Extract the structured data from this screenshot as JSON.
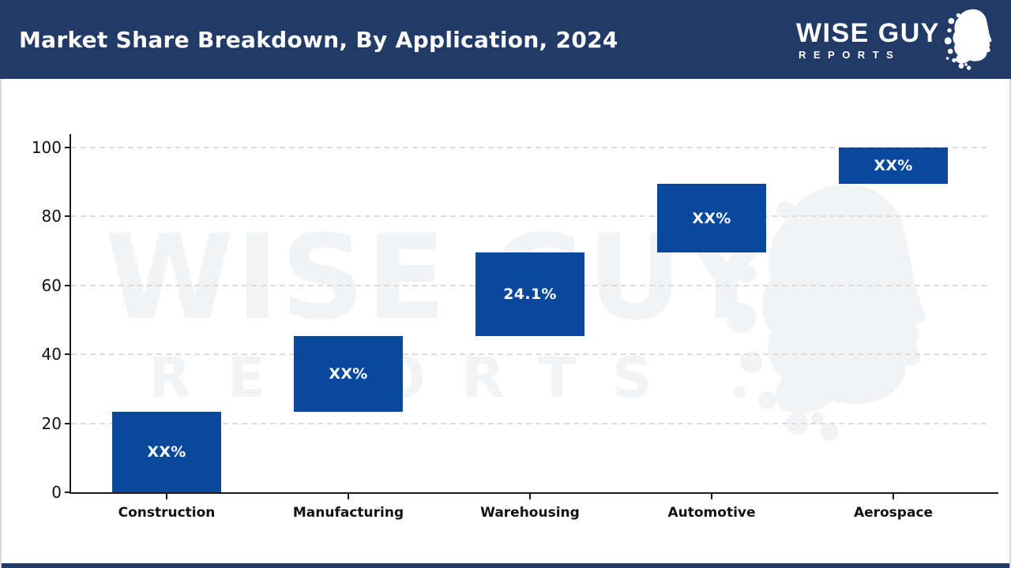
{
  "header": {
    "title": "Market Share Breakdown, By Application, 2024",
    "logo": {
      "line1": "WISE GUY",
      "line2": "REPORTS"
    }
  },
  "watermark": {
    "line1": "WISE GUY",
    "line2": "REPORTS"
  },
  "colors": {
    "navy": "#213a68",
    "bar_blue": "#0a489c",
    "grid": "#dcdcdc",
    "watermark": "#f2f3f5"
  },
  "chart_data": {
    "type": "bar",
    "subtype": "waterfall",
    "title": "Market Share Breakdown, By Application, 2024",
    "categories": [
      "Construction",
      "Manufacturing",
      "Warehousing",
      "Automotive",
      "Aerospace"
    ],
    "segments": [
      {
        "category": "Construction",
        "start": 0,
        "end": 23.4,
        "label": "XX%"
      },
      {
        "category": "Manufacturing",
        "start": 23.4,
        "end": 45.4,
        "label": "XX%"
      },
      {
        "category": "Warehousing",
        "start": 45.4,
        "end": 69.5,
        "label": "24.1%",
        "value": 24.1
      },
      {
        "category": "Automotive",
        "start": 69.5,
        "end": 89.5,
        "label": "XX%"
      },
      {
        "category": "Aerospace",
        "start": 89.5,
        "end": 100,
        "label": "XX%"
      }
    ],
    "y_ticks": [
      0,
      20,
      40,
      60,
      80,
      100
    ],
    "ylim": [
      0,
      100
    ],
    "xlabel": "",
    "ylabel": "",
    "bar_color": "#0a489c",
    "bar_label_color": "#ffffff",
    "grid": "horizontal-dashed",
    "legend": "none"
  }
}
